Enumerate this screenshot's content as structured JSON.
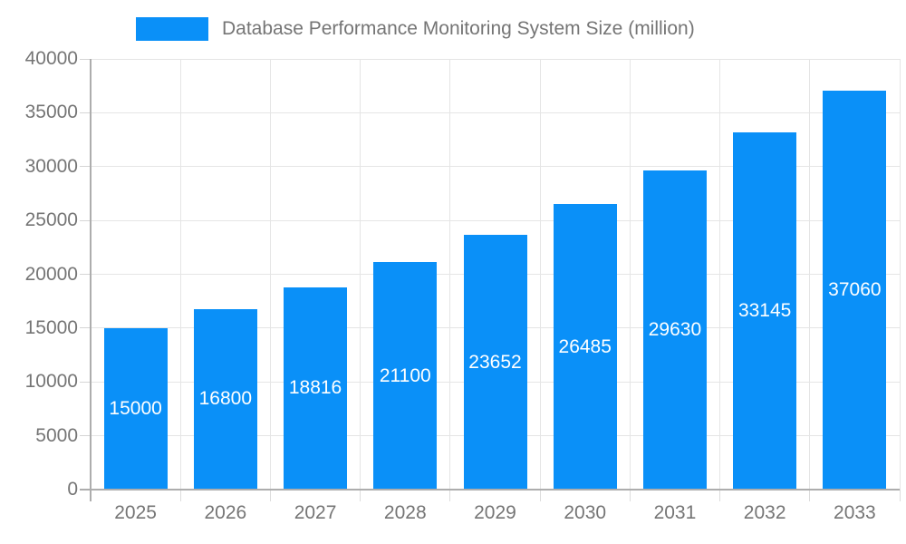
{
  "legend": {
    "label": "Database Performance Monitoring System Size (million)"
  },
  "chart_data": {
    "type": "bar",
    "title": "Database Performance Monitoring System Size (million)",
    "categories": [
      "2025",
      "2026",
      "2027",
      "2028",
      "2029",
      "2030",
      "2031",
      "2032",
      "2033"
    ],
    "values": [
      15000,
      16800,
      18816,
      21100,
      23652,
      26485,
      29630,
      33145,
      37060
    ],
    "xlabel": "",
    "ylabel": "",
    "ylim": [
      0,
      40000
    ],
    "ytick_step": 5000,
    "ytick_labels": [
      "0",
      "5000",
      "10000",
      "15000",
      "20000",
      "25000",
      "30000",
      "35000",
      "40000"
    ],
    "grid": true,
    "legend_position": "top",
    "bar_color": "#0a90f8",
    "bar_label_color": "#ffffff",
    "axis_text_color": "#757575",
    "grid_color": "#e5e5e5",
    "axis_line_color": "#adadad"
  }
}
